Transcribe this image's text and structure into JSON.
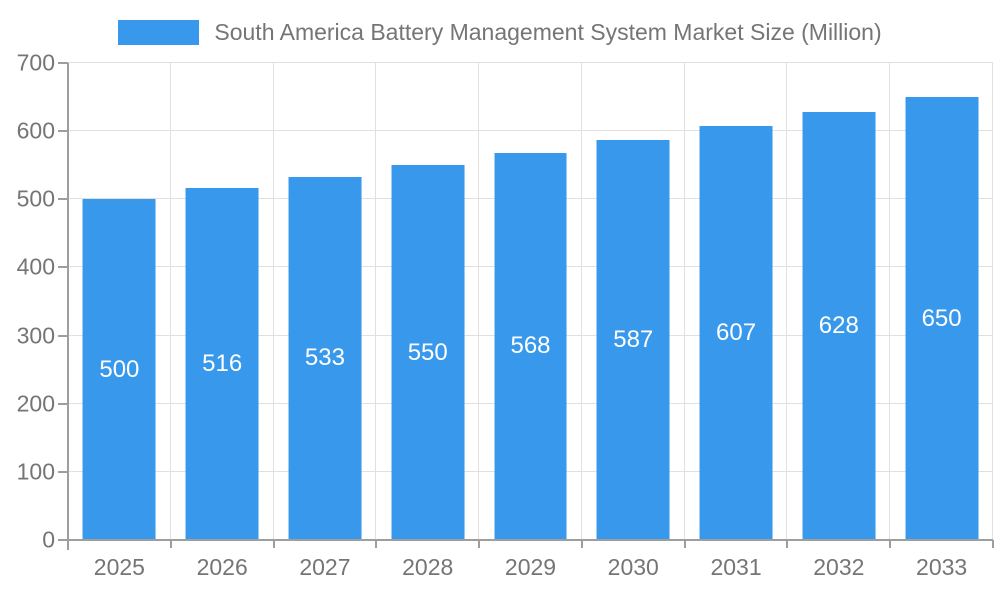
{
  "chart_data": {
    "type": "bar",
    "title": "South America Battery Management System Market Size (Million)",
    "categories": [
      "2025",
      "2026",
      "2027",
      "2028",
      "2029",
      "2030",
      "2031",
      "2032",
      "2033"
    ],
    "values": [
      500,
      516,
      533,
      550,
      568,
      587,
      607,
      628,
      650
    ],
    "xlabel": "",
    "ylabel": "",
    "ylim": [
      0,
      700
    ],
    "yticks": [
      0,
      100,
      200,
      300,
      400,
      500,
      600,
      700
    ],
    "grid": true,
    "legend_position": "top-center",
    "value_label_position": "inside-center",
    "bar_width_fraction": 0.71
  },
  "colors": {
    "bar": "#3899EC",
    "grid_line": "#E0E0E0",
    "axis_line": "#9E9E9E",
    "tick_text": "#757575",
    "bar_label_text": "#FFFFFF",
    "background": "#FFFFFF"
  }
}
